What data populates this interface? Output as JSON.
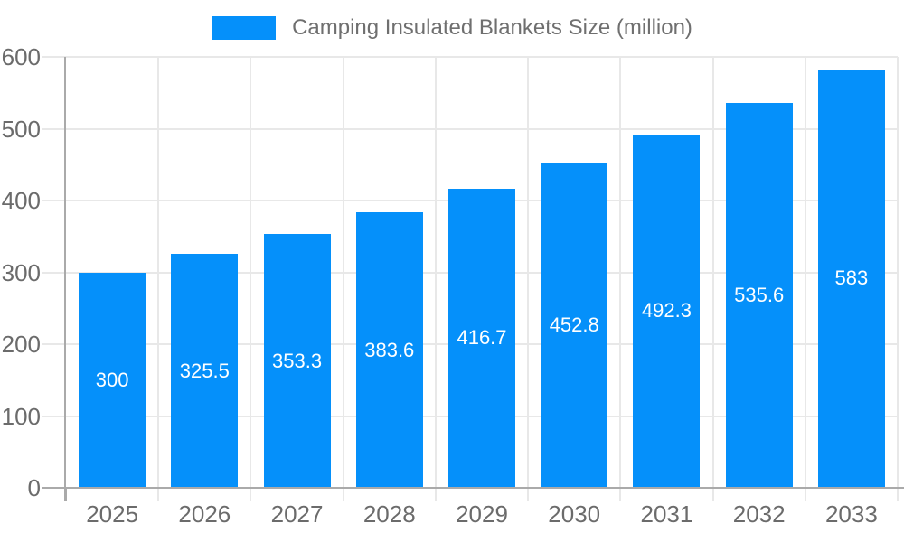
{
  "chart_data": {
    "type": "bar",
    "title": "Camping Insulated Blankets Size (million)",
    "legend_entries": [
      "Camping Insulated Blankets Size (million)"
    ],
    "categories": [
      "2025",
      "2026",
      "2027",
      "2028",
      "2029",
      "2030",
      "2031",
      "2032",
      "2033"
    ],
    "values": [
      300,
      325.5,
      353.3,
      383.6,
      416.7,
      452.8,
      492.3,
      535.6,
      583
    ],
    "xlabel": "",
    "ylabel": "",
    "ylim": [
      0,
      600
    ],
    "yticks": [
      0,
      100,
      200,
      300,
      400,
      500,
      600
    ],
    "grid": true,
    "legend_position": "top",
    "colors": {
      "bar": "#0590fa",
      "grid": "#e8e8e8",
      "axis": "#aaaaaa",
      "tick_label": "#6b6b6b",
      "legend_text": "#6f6f6f",
      "bar_label": "#ffffff",
      "background": "#ffffff"
    }
  }
}
